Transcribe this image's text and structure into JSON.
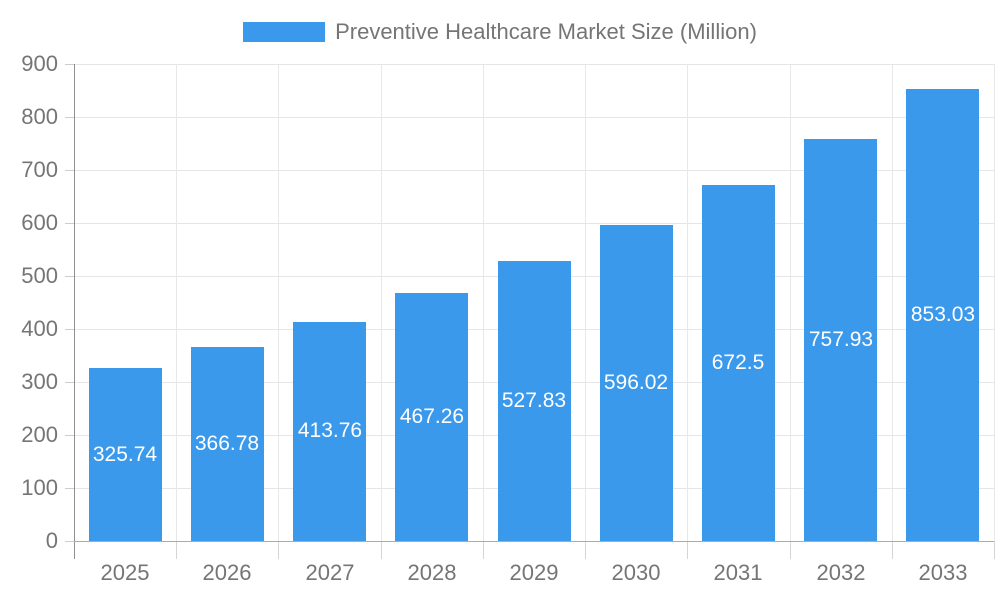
{
  "chart_data": {
    "type": "bar",
    "title": "Preventive Healthcare Market Size (Million)",
    "legend": "Preventive Healthcare Market Size (Million)",
    "legend_position": "top-center",
    "categories": [
      "2025",
      "2026",
      "2027",
      "2028",
      "2029",
      "2030",
      "2031",
      "2032",
      "2033"
    ],
    "values": [
      325.74,
      366.78,
      413.76,
      467.26,
      527.83,
      596.02,
      672.5,
      757.93,
      853.03
    ],
    "value_labels": [
      "325.74",
      "366.78",
      "413.76",
      "467.26",
      "527.83",
      "596.02",
      "672.5",
      "757.93",
      "853.03"
    ],
    "xlabel": "",
    "ylabel": "",
    "ylim": [
      0,
      900
    ],
    "ytick_step": 100,
    "ytick_labels": [
      "0",
      "100",
      "200",
      "300",
      "400",
      "500",
      "600",
      "700",
      "800",
      "900"
    ],
    "grid": true,
    "bar_color": "#3b99ec",
    "value_label_color": "#ffffff",
    "axis_text_color": "#757575"
  }
}
